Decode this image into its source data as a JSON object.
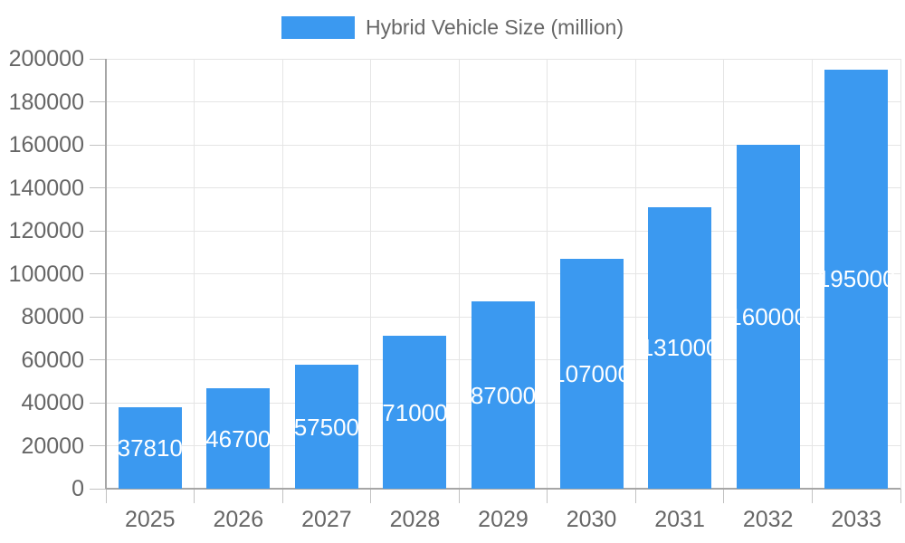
{
  "legend": {
    "series_label": "Hybrid Vehicle Size (million)"
  },
  "colors": {
    "bar": "#3b99f0",
    "grid": "#e5e5e5",
    "axis": "#a6a6a6",
    "tick_mark": "#c2c2c2",
    "tick_text": "#666666",
    "legend_text": "#666666",
    "value_text": "#ffffff",
    "background": "#ffffff"
  },
  "chart_data": {
    "type": "bar",
    "title": "Hybrid Vehicle Size (million)",
    "categories": [
      "2025",
      "2026",
      "2027",
      "2028",
      "2029",
      "2030",
      "2031",
      "2032",
      "2033"
    ],
    "values": [
      37810,
      46700,
      57500,
      71000,
      87000,
      107000,
      131000,
      160000,
      195000
    ],
    "value_labels": [
      "37810",
      "46700",
      "57500",
      "71000",
      "87000",
      "107000",
      "131000",
      "160000",
      "195000"
    ],
    "xlabel": "",
    "ylabel": "",
    "ylim": [
      0,
      200000
    ],
    "ytick_step": 20000,
    "ytick_labels": [
      "0",
      "20000",
      "40000",
      "60000",
      "80000",
      "100000",
      "120000",
      "140000",
      "160000",
      "180000",
      "200000"
    ],
    "grid": true,
    "legend_position": "top",
    "value_labels_position": "inside-center"
  }
}
